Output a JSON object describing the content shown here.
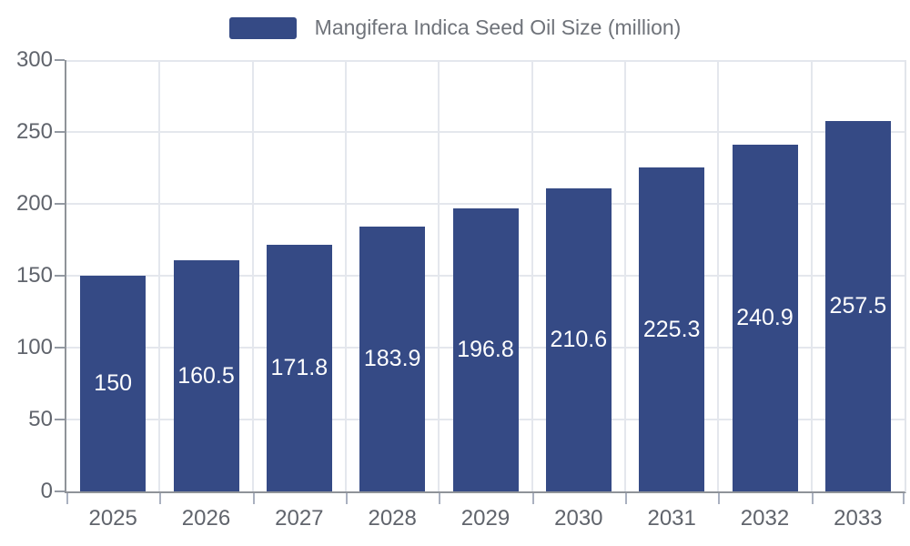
{
  "chart_data": {
    "type": "bar",
    "title": "",
    "legend": "Mangifera Indica Seed Oil Size (million)",
    "legend_position": "top",
    "categories": [
      "2025",
      "2026",
      "2027",
      "2028",
      "2029",
      "2030",
      "2031",
      "2032",
      "2033"
    ],
    "values": [
      150,
      160.5,
      171.8,
      183.9,
      196.8,
      210.6,
      225.3,
      240.9,
      257.5
    ],
    "value_labels": [
      "150",
      "160.5",
      "171.8",
      "183.9",
      "196.8",
      "210.6",
      "225.3",
      "240.9",
      "257.5"
    ],
    "xlabel": "",
    "ylabel": "",
    "ylim": [
      0,
      300
    ],
    "yticks": [
      0,
      50,
      100,
      150,
      200,
      250,
      300
    ],
    "grid": true,
    "colors": {
      "bar": "#354A85",
      "bar_label": "#ffffff",
      "axis_text": "#60646c",
      "legend_text": "#6f737a",
      "gridline": "#e4e7ed",
      "axis_line": "#8f9399"
    }
  }
}
